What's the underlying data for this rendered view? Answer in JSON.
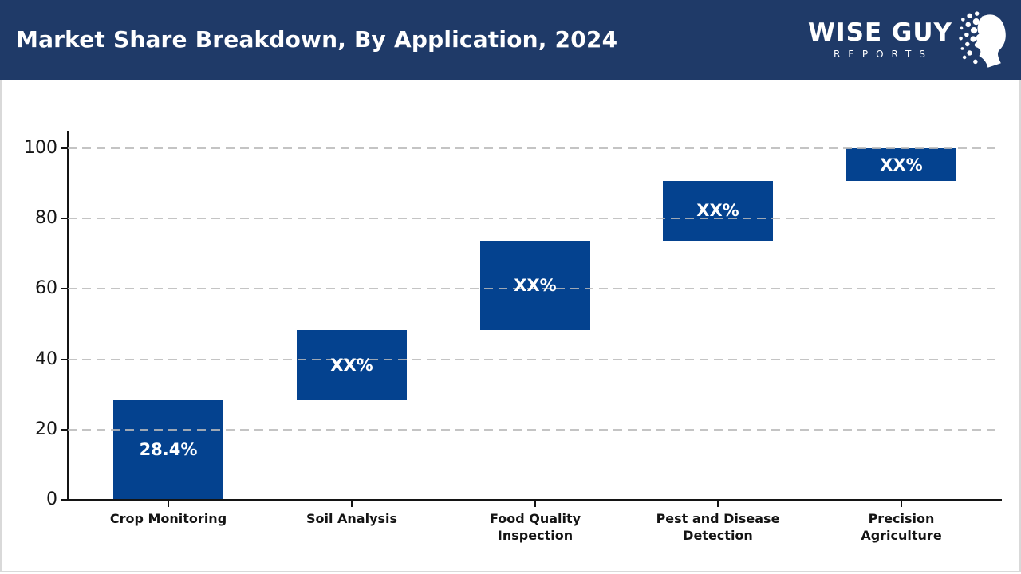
{
  "header": {
    "title": "Market Share Breakdown, By Application, 2024",
    "logo": {
      "line1": "WISE GUY",
      "line2": "REPORTS"
    }
  },
  "watermark": {
    "line1": "WISE GUY",
    "line2": "REPORTS"
  },
  "colors": {
    "header_bg": "#1f3a68",
    "bar": "#04428f",
    "bar_label": "#ffffff",
    "axis": "#141414",
    "gridline": "#cccccc",
    "watermark": "#f1f1f4"
  },
  "chart_data": {
    "type": "bar",
    "subtype": "waterfall",
    "title": "Market Share Breakdown, By Application, 2024",
    "xlabel": "",
    "ylabel": "",
    "ylim": [
      0,
      105
    ],
    "y_ticks": [
      0,
      20,
      40,
      60,
      80,
      100
    ],
    "grid": "horizontal-dashed",
    "legend": "none",
    "categories": [
      "Crop Monitoring",
      "Soil Analysis",
      "Food Quality Inspection",
      "Pest and Disease Detection",
      "Precision Agriculture"
    ],
    "category_display_lines": [
      [
        "Crop Monitoring"
      ],
      [
        "Soil Analysis"
      ],
      [
        "Food Quality",
        "Inspection"
      ],
      [
        "Pest and Disease",
        "Detection"
      ],
      [
        "Precision",
        "Agriculture"
      ]
    ],
    "segments": [
      {
        "category": "Crop Monitoring",
        "start": 0,
        "end": 28.4,
        "label": "28.4%"
      },
      {
        "category": "Soil Analysis",
        "start": 28.4,
        "end": 48.3,
        "label": "XX%"
      },
      {
        "category": "Food Quality Inspection",
        "start": 48.3,
        "end": 73.8,
        "label": "XX%"
      },
      {
        "category": "Pest and Disease Detection",
        "start": 73.8,
        "end": 90.7,
        "label": "XX%"
      },
      {
        "category": "Precision Agriculture",
        "start": 90.7,
        "end": 100.0,
        "label": "XX%"
      }
    ]
  }
}
